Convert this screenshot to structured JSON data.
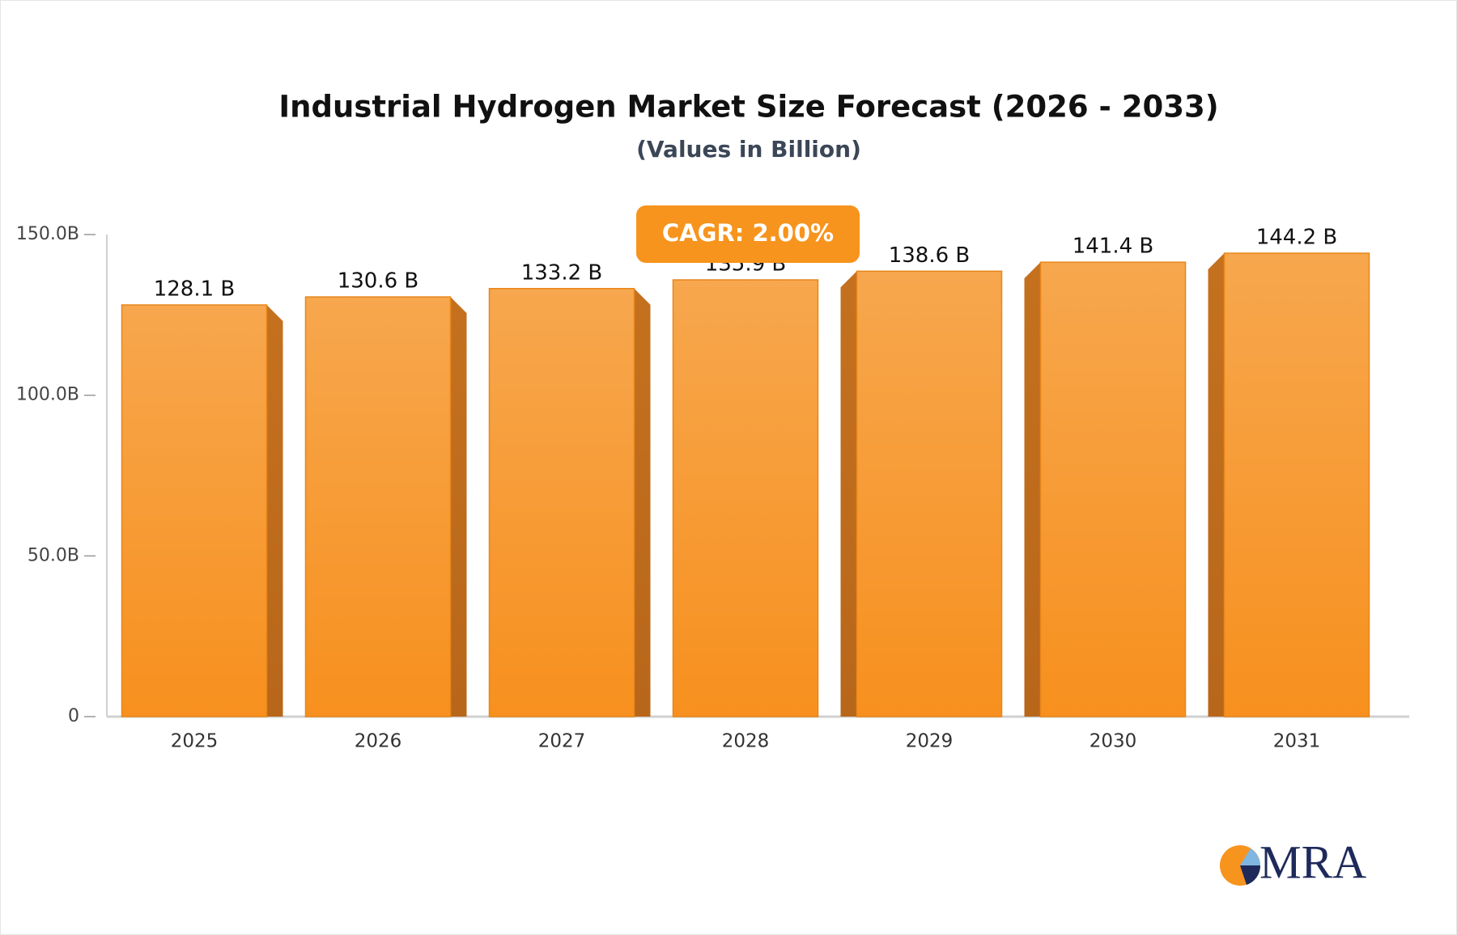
{
  "chart_data": {
    "type": "bar3d",
    "title": "Industrial Hydrogen Market Size Forecast (2026 - 2033)",
    "subtitle": "(Values in Billion)",
    "annotation": "CAGR: 2.00%",
    "categories": [
      "2025",
      "2026",
      "2027",
      "2028",
      "2029",
      "2030",
      "2031"
    ],
    "values": [
      128.1,
      130.6,
      133.2,
      135.9,
      138.6,
      141.4,
      144.2
    ],
    "value_labels": [
      "128.1 B",
      "130.6 B",
      "133.2 B",
      "135.9 B",
      "138.6 B",
      "141.4 B",
      "144.2 B"
    ],
    "color": "#f7941d",
    "ylim": [
      0,
      150
    ],
    "yticks": [
      0,
      {
        "value": 50,
        "label": "50.0B"
      },
      {
        "value": 100,
        "label": "100.0B"
      },
      {
        "value": 150,
        "label": "150.0B"
      }
    ]
  },
  "logo": "MRA"
}
